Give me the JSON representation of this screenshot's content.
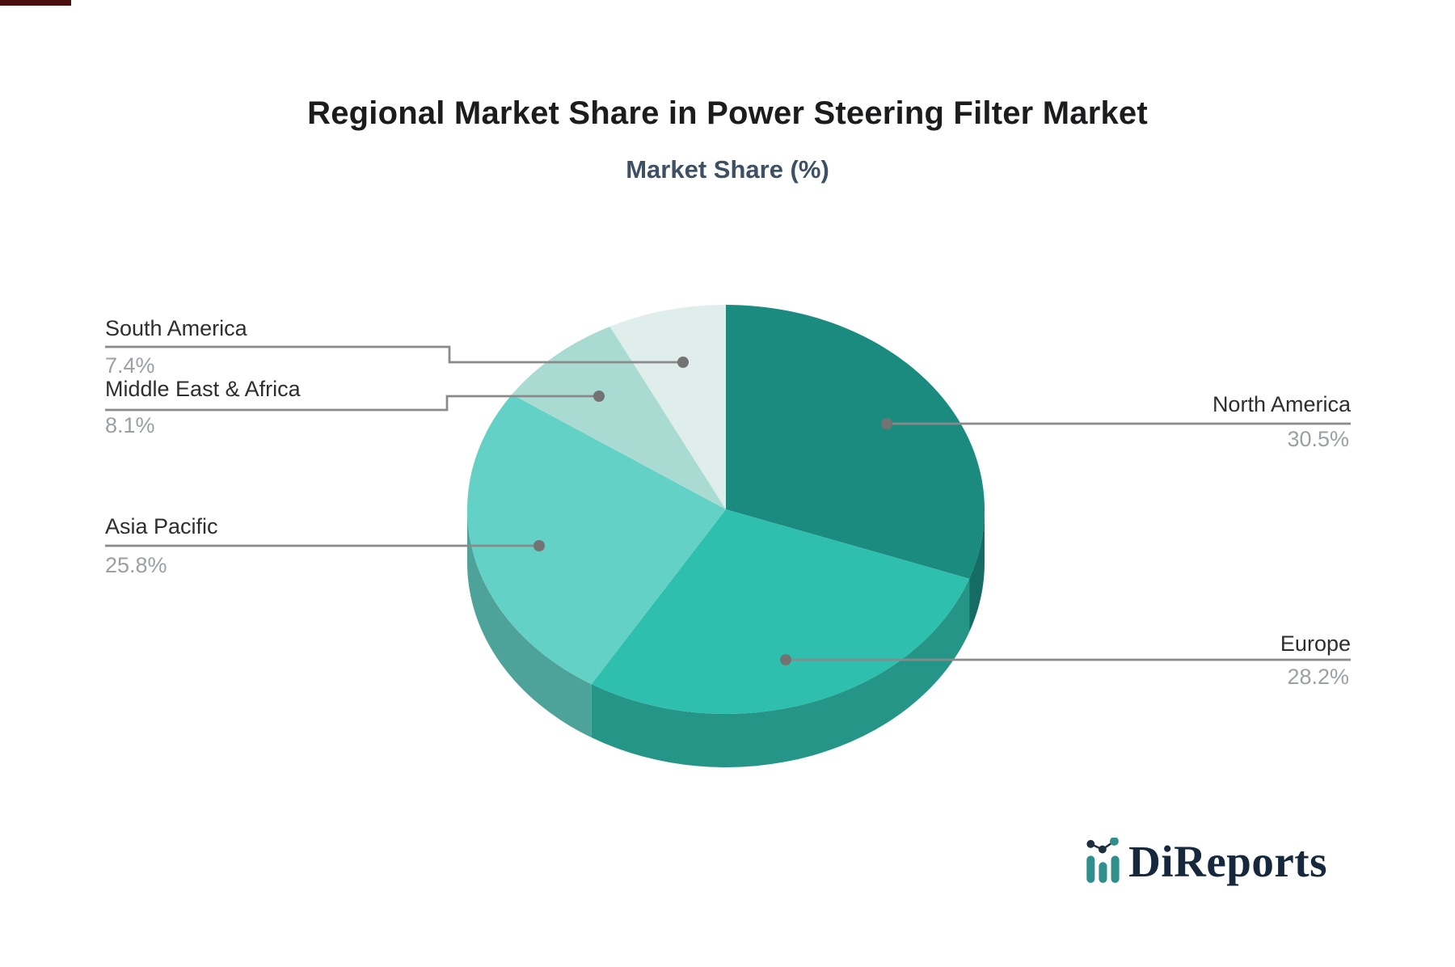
{
  "chart_data": {
    "type": "pie",
    "title": "Regional Market Share in Power Steering Filter Market",
    "subtitle": "Market Share (%)",
    "style": "3d-pie",
    "legend_position": "none",
    "direction": "clockwise",
    "start_angle_deg": 0,
    "connector_color": "#8a8a8a",
    "connector_dot_color": "#737373",
    "series": [
      {
        "label": "North America",
        "value": 30.5,
        "display": "30.5%",
        "color": "#1b8b80"
      },
      {
        "label": "Europe",
        "value": 28.2,
        "display": "28.2%",
        "color": "#2fbfae"
      },
      {
        "label": "Asia Pacific",
        "value": 25.8,
        "display": "25.8%",
        "color": "#63d1c5"
      },
      {
        "label": "Middle East & Africa",
        "value": 8.1,
        "display": "8.1%",
        "color": "#a9dbd3"
      },
      {
        "label": "South America",
        "value": 7.4,
        "display": "7.4%",
        "color": "#dfeeeb"
      }
    ]
  },
  "brand": {
    "name": "DiReports"
  }
}
